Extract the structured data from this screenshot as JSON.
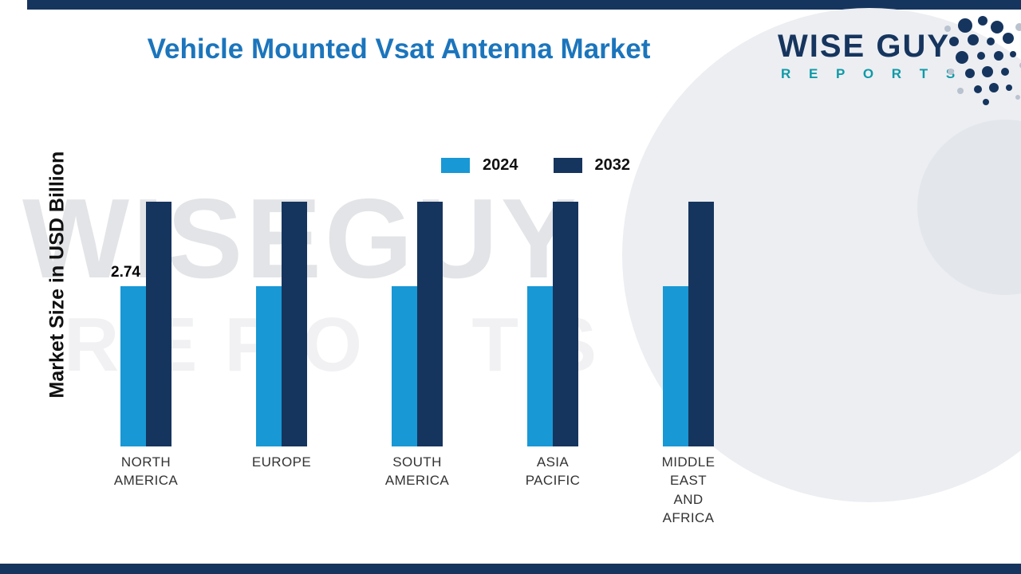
{
  "page": {
    "title": "Vehicle Mounted Vsat Antenna Market"
  },
  "logo": {
    "line1": "WISE GUY",
    "line2": "R E P O R T S"
  },
  "watermark": {
    "line1": "WISEGUY",
    "line2": "REPORTS"
  },
  "y_axis_label": "Market Size in USD Billion",
  "legend": {
    "items": [
      {
        "label": "2024",
        "color": "#1898d5"
      },
      {
        "label": "2032",
        "color": "#16355e"
      }
    ]
  },
  "annotation": {
    "value_label": "2.74"
  },
  "chart_data": {
    "type": "bar",
    "title": "Vehicle Mounted Vsat Antenna Market",
    "xlabel": "",
    "ylabel": "Market Size in USD Billion",
    "categories": [
      "NORTH AMERICA",
      "EUROPE",
      "SOUTH AMERICA",
      "ASIA PACIFIC",
      "MIDDLE EAST AND AFRICA"
    ],
    "category_lines": [
      [
        "NORTH",
        "AMERICA"
      ],
      [
        "EUROPE"
      ],
      [
        "SOUTH",
        "AMERICA"
      ],
      [
        "ASIA",
        "PACIFIC"
      ],
      [
        "MIDDLE",
        "EAST",
        "AND",
        "AFRICA"
      ]
    ],
    "series": [
      {
        "name": "2024",
        "color": "#1898d5",
        "values": [
          2.74,
          2.74,
          2.74,
          2.74,
          2.74
        ]
      },
      {
        "name": "2032",
        "color": "#16355e",
        "values": [
          4.2,
          4.2,
          4.2,
          4.2,
          4.2
        ]
      }
    ],
    "data_labels": [
      "2.74"
    ],
    "ylim": [
      0,
      4.5
    ],
    "grid": false,
    "legend_position": "top"
  }
}
